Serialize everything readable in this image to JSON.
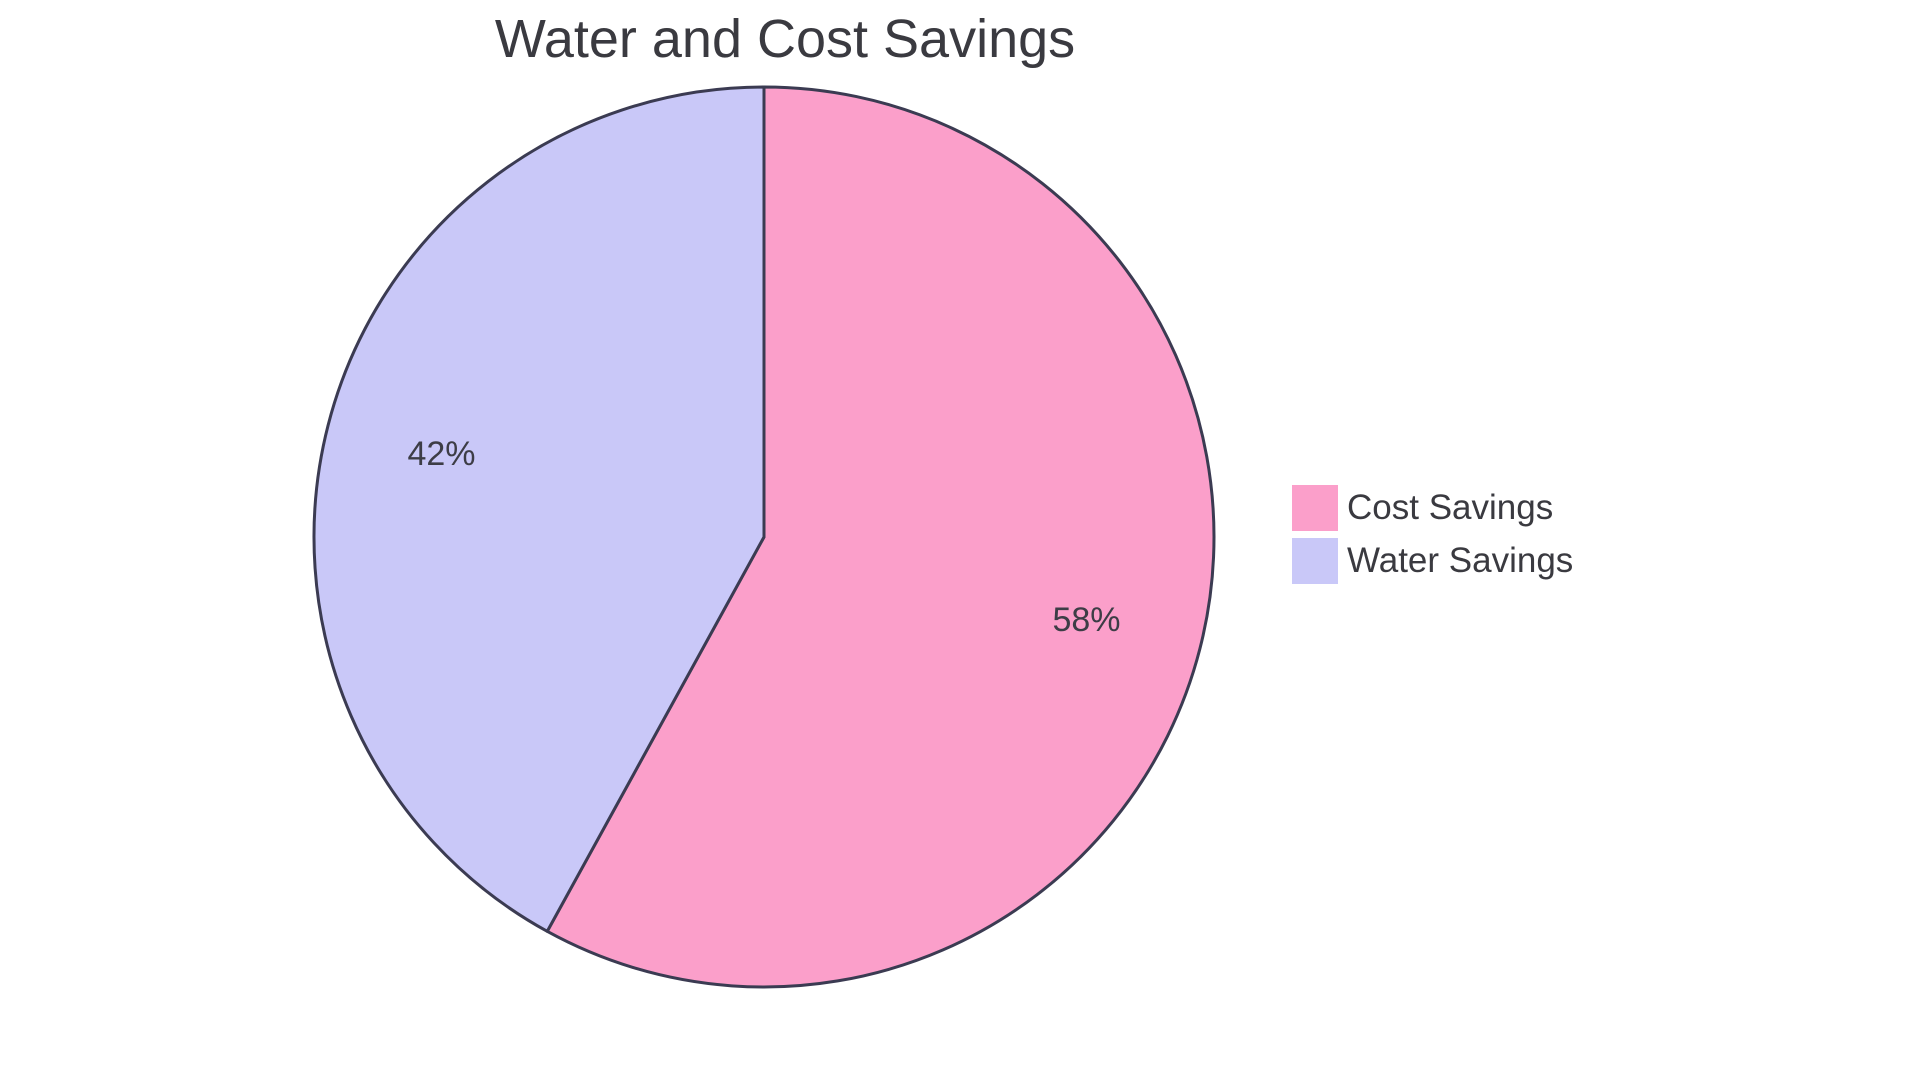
{
  "chart_data": {
    "type": "pie",
    "title": "Water and Cost Savings",
    "labels": [
      "Cost Savings",
      "Water Savings"
    ],
    "values": [
      58,
      42
    ],
    "slice_labels": [
      "58%",
      "42%"
    ],
    "colors": [
      "#FB9FCA",
      "#C9C8F8"
    ],
    "slice_stroke_color": "#3B3B52",
    "text_color": "#3A3A40",
    "background_color": "#FFFFFF",
    "legend_position": "right",
    "start_angle_deg": 0,
    "direction": "clockwise"
  }
}
